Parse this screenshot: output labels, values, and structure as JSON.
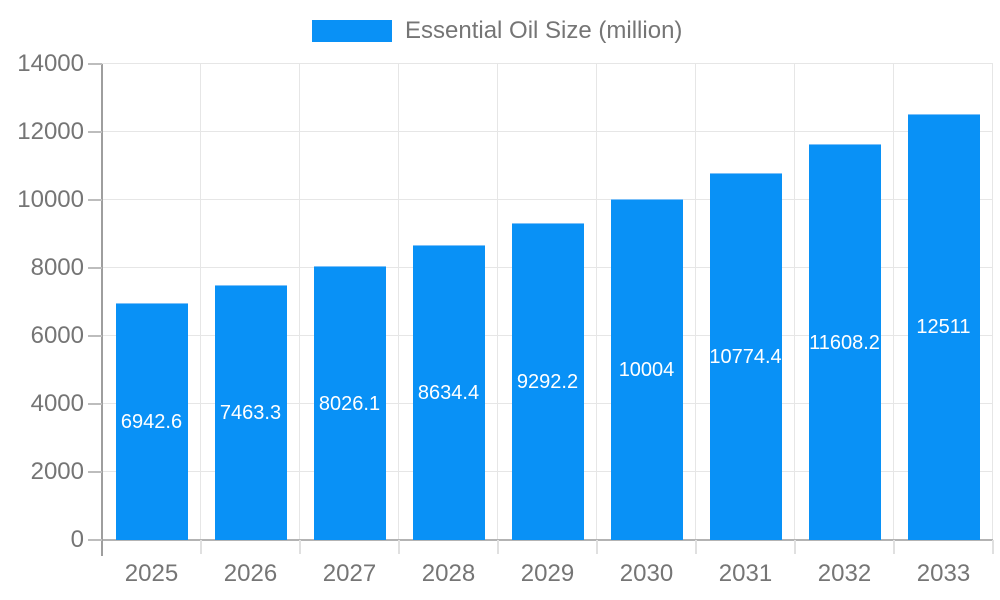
{
  "legend": {
    "label": "Essential Oil Size (million)"
  },
  "chart_data": {
    "type": "bar",
    "title": "",
    "xlabel": "",
    "ylabel": "",
    "categories": [
      "2025",
      "2026",
      "2027",
      "2028",
      "2029",
      "2030",
      "2031",
      "2032",
      "2033"
    ],
    "series": [
      {
        "name": "Essential Oil Size (million)",
        "values": [
          6942.6,
          7463.3,
          8026.1,
          8634.4,
          9292.2,
          10004,
          10774.4,
          11608.2,
          12511
        ]
      }
    ],
    "bar_labels": [
      "6942.6",
      "7463.3",
      "8026.1",
      "8634.4",
      "9292.2",
      "10004",
      "10774.4",
      "11608.2",
      "12511"
    ],
    "ylim": [
      0,
      14000
    ],
    "yticks": [
      0,
      2000,
      4000,
      6000,
      8000,
      10000,
      12000,
      14000
    ],
    "grid": "on",
    "legend_position": "top"
  },
  "colors": {
    "bar": "#0991f6",
    "bar_top_edge": "#7cc0f8",
    "bar_label_text": "#ffffff",
    "axis_text": "#757575",
    "gridline": "#e6e6e6",
    "y_axis_line": "#9e9e9e",
    "x_baseline": "#b3b3b3",
    "background": "#ffffff"
  }
}
